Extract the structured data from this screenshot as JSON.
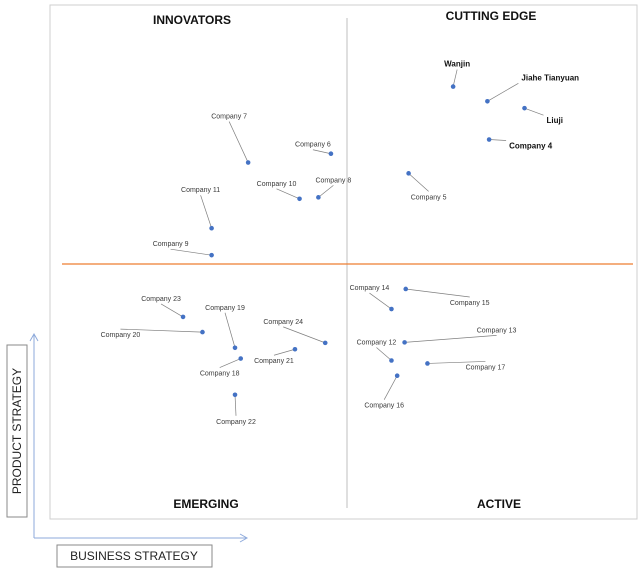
{
  "chart_data": {
    "type": "scatter",
    "title": "",
    "xlabel": "BUSINESS STRATEGY",
    "ylabel": "PRODUCT STRATEGY",
    "xlim": [
      0,
      100
    ],
    "ylim": [
      0,
      100
    ],
    "grid": false,
    "quadrants": {
      "top_left": "INNOVATORS",
      "top_right": "CUTTING EDGE",
      "bottom_left": "EMERGING",
      "bottom_right": "ACTIVE"
    },
    "colors": {
      "point": "#4472c4",
      "horizontal_divider": "#ed7d31",
      "vertical_divider": "#bfbfbf",
      "axis_arrow": "#8eaadb"
    },
    "points": [
      {
        "name": "Wanjin",
        "x": 68.5,
        "y": 86.0,
        "highlight": true
      },
      {
        "name": "Jiahe Tianyuan",
        "x": 74.5,
        "y": 83.0,
        "highlight": true
      },
      {
        "name": "Liuji",
        "x": 81.0,
        "y": 81.6,
        "highlight": true
      },
      {
        "name": "Company 4",
        "x": 74.8,
        "y": 75.2,
        "highlight": true
      },
      {
        "name": "Company 5",
        "x": 60.7,
        "y": 68.3,
        "highlight": false
      },
      {
        "name": "Company 6",
        "x": 47.1,
        "y": 72.3,
        "highlight": false
      },
      {
        "name": "Company 7",
        "x": 32.6,
        "y": 70.5,
        "highlight": false
      },
      {
        "name": "Company 8",
        "x": 44.9,
        "y": 63.4,
        "highlight": false
      },
      {
        "name": "Company 10",
        "x": 41.6,
        "y": 63.1,
        "highlight": false
      },
      {
        "name": "Company 11",
        "x": 26.2,
        "y": 57.1,
        "highlight": false
      },
      {
        "name": "Company 9",
        "x": 26.2,
        "y": 51.6,
        "highlight": false
      },
      {
        "name": "Company 15",
        "x": 60.2,
        "y": 44.7,
        "highlight": false
      },
      {
        "name": "Company 14",
        "x": 57.7,
        "y": 40.6,
        "highlight": false
      },
      {
        "name": "Company 13",
        "x": 60.0,
        "y": 33.8,
        "highlight": false
      },
      {
        "name": "Company 12",
        "x": 57.7,
        "y": 30.1,
        "highlight": false
      },
      {
        "name": "Company 17",
        "x": 64.0,
        "y": 29.5,
        "highlight": false
      },
      {
        "name": "Company 16",
        "x": 58.7,
        "y": 27.0,
        "highlight": false
      },
      {
        "name": "Company 23",
        "x": 21.2,
        "y": 39.0,
        "highlight": false
      },
      {
        "name": "Company 20",
        "x": 24.6,
        "y": 35.9,
        "highlight": false
      },
      {
        "name": "Company 24",
        "x": 46.1,
        "y": 33.7,
        "highlight": false
      },
      {
        "name": "Company 19",
        "x": 30.3,
        "y": 32.7,
        "highlight": false
      },
      {
        "name": "Company 21",
        "x": 40.8,
        "y": 32.4,
        "highlight": false
      },
      {
        "name": "Company 18",
        "x": 31.3,
        "y": 30.5,
        "highlight": false
      },
      {
        "name": "Company 22",
        "x": 30.3,
        "y": 23.1,
        "highlight": false
      }
    ]
  }
}
